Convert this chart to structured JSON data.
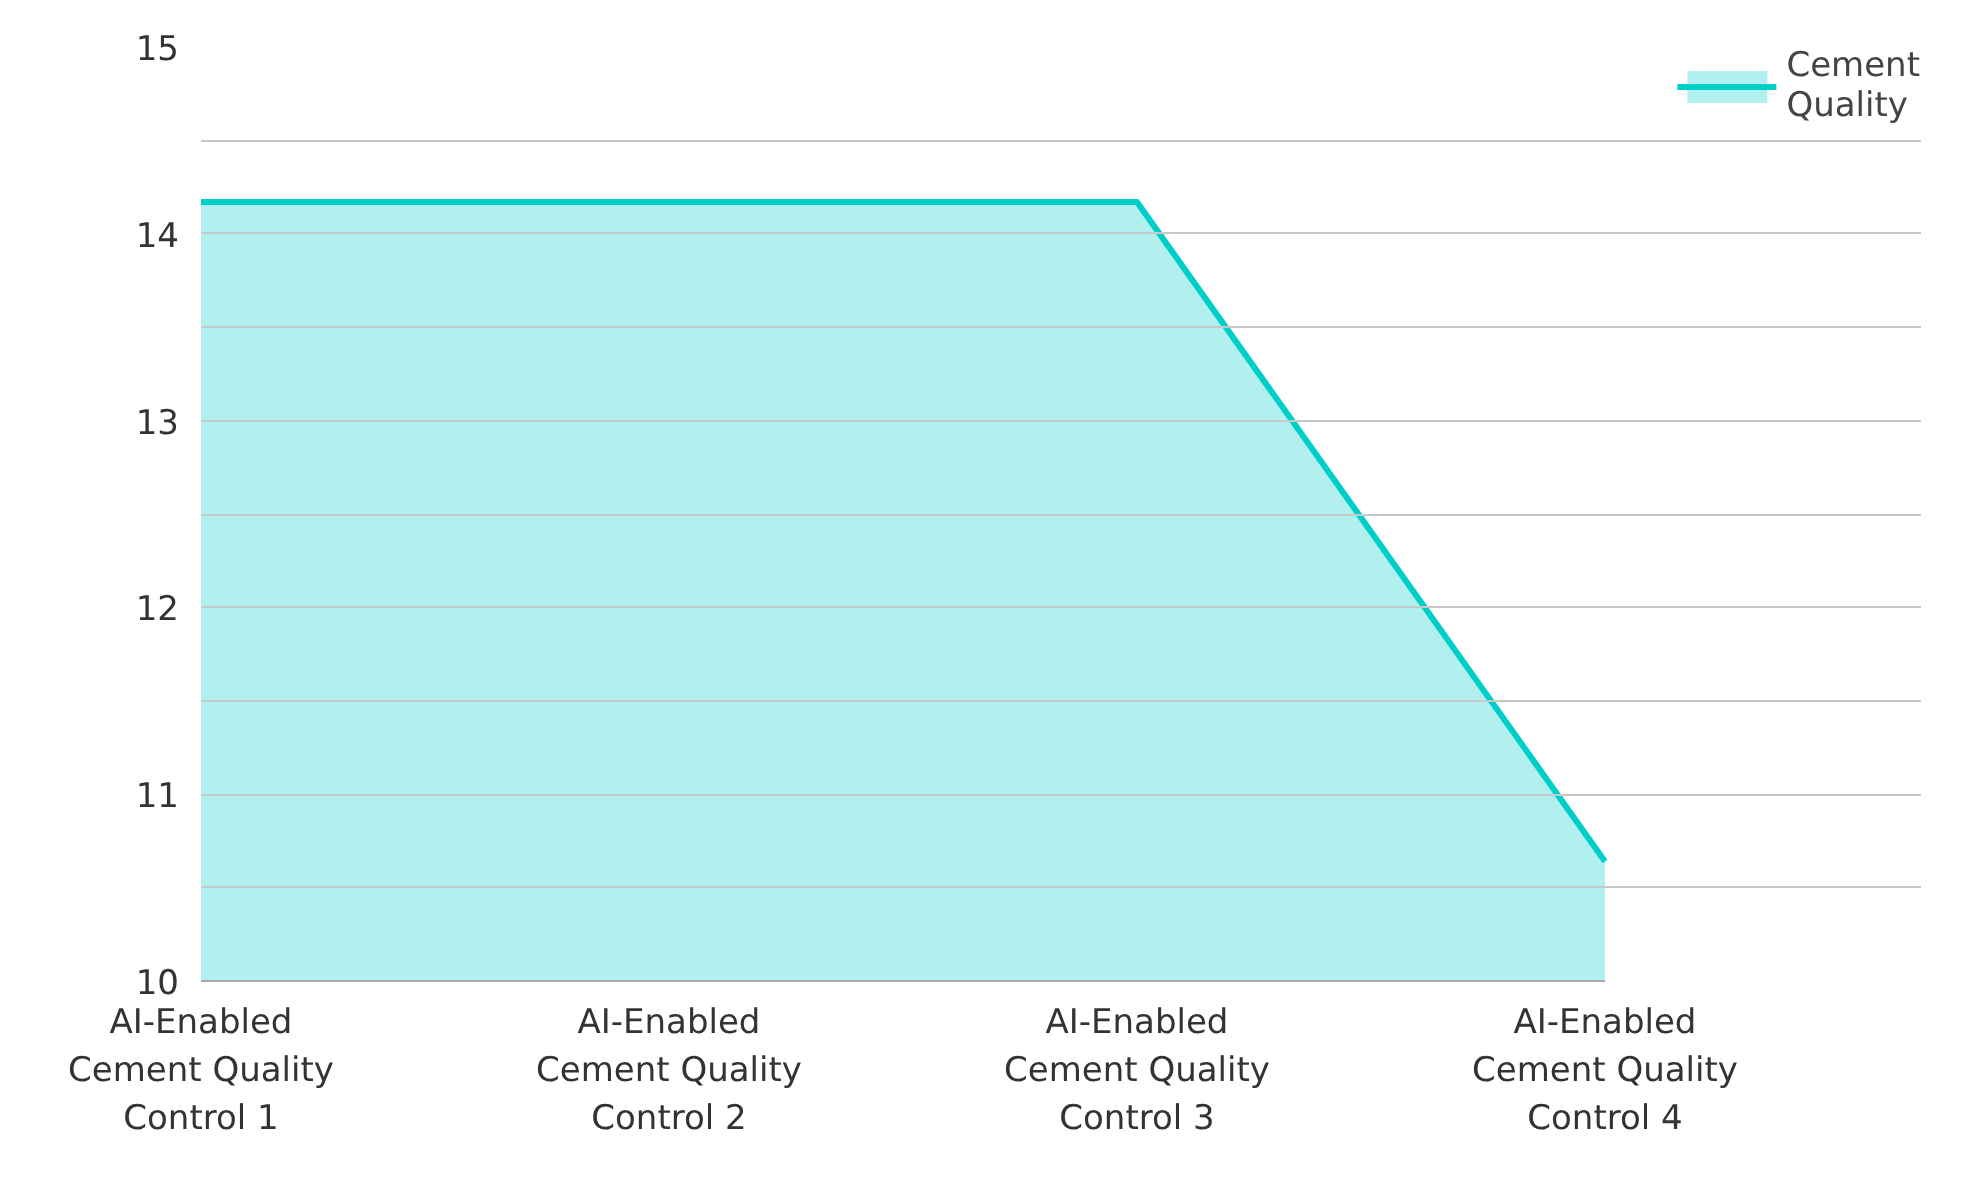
{
  "chart_data": {
    "type": "area",
    "categories": [
      "AI-Enabled Cement Quality Control 1",
      "AI-Enabled Cement Quality Control 2",
      "AI-Enabled Cement Quality Control 3",
      "AI-Enabled Cement Quality Control 4"
    ],
    "series": [
      {
        "name": "Cement Quality",
        "color": "#00cec9",
        "values": [
          14.17,
          14.17,
          14.17,
          10.64
        ]
      }
    ],
    "ylim": [
      10,
      15
    ],
    "yticks": [
      10,
      {
        "value": 10.5,
        "label": null
      },
      11,
      {
        "value": 11.5,
        "label": null
      },
      12,
      {
        "value": 12.5,
        "label": null
      },
      13,
      {
        "value": 13.5,
        "label": null
      },
      14,
      {
        "value": 14.5,
        "label": null
      },
      15
    ],
    "grid": "y",
    "legend": "top right"
  }
}
